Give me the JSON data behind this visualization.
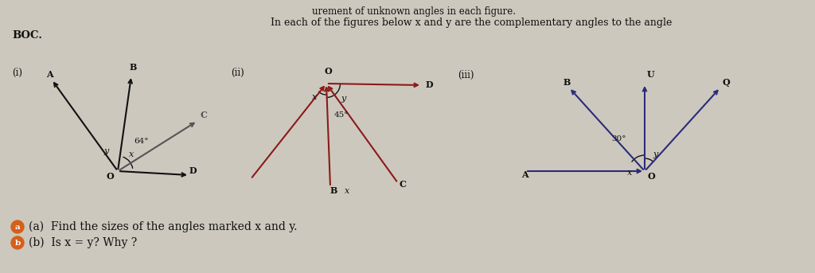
{
  "bg_color": "#cdc8be",
  "text_color": "#111111",
  "title_line1": "urement of unknown angles in each figure.",
  "title_line2": "In each of the figures below x and y are the complementary angles to the angle",
  "title_line3": "BOC.",
  "part_a": "Find the sizes of the angles marked x and y.",
  "part_b": "Is x = y? Why ?",
  "fig1_label": "(i)",
  "fig2_label": "(ii)",
  "fig3_label": "(iii)",
  "angle1": "64°",
  "angle2": "45°",
  "angle3": "30°",
  "dark_red": "#8B1A1A",
  "dark_blue": "#2B2B7A",
  "black": "#111111",
  "gray": "#555555"
}
